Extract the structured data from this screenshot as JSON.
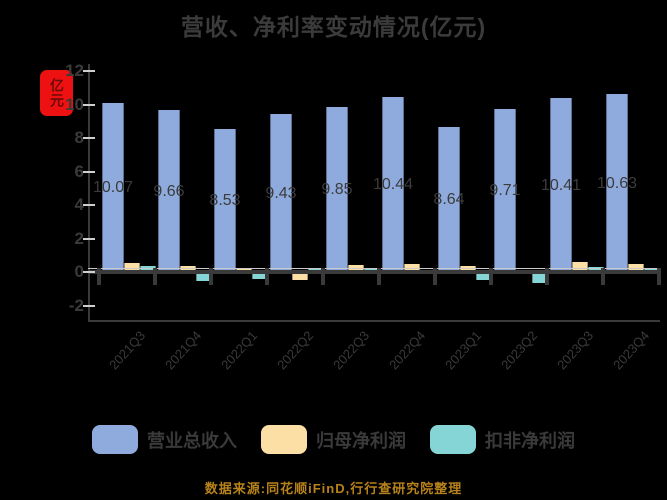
{
  "title": "营收、净利率变动情况(亿元)",
  "y_axis_unit_badge": "亿元",
  "source_caption": "数据来源:同花顺iFinD,行行查研究院整理",
  "colors": {
    "background": "#000000",
    "text": "#3b3b3b",
    "axis": "#3a3a3a",
    "tick": "#cfcfcf",
    "badge_red": "#ee1111",
    "caption_gold": "#b8821a",
    "revenue_blue": "#8faadc",
    "net_profit_orange": "#fcdfa4",
    "deducted_profit_teal": "#86d5d6"
  },
  "legend": [
    {
      "label": "营业总收入",
      "color": "#8faadc"
    },
    {
      "label": "归母净利润",
      "color": "#fcdfa4"
    },
    {
      "label": "扣非净利润",
      "color": "#86d5d6"
    }
  ],
  "chart_data": {
    "type": "bar",
    "title": "营收、净利率变动情况(亿元)",
    "categories": [
      "2021Q3",
      "2021Q4",
      "2022Q1",
      "2022Q2",
      "2022Q3",
      "2022Q4",
      "2023Q1",
      "2023Q2",
      "2023Q3",
      "2023Q4"
    ],
    "series": [
      {
        "name": "营业总收入",
        "color": "#8faadc",
        "values": [
          10.07,
          9.66,
          8.53,
          9.43,
          9.85,
          10.44,
          8.64,
          9.71,
          10.41,
          10.63
        ]
      },
      {
        "name": "归母净利润",
        "color": "#fcdfa4",
        "values": [
          0.55,
          0.35,
          0.25,
          -0.45,
          0.4,
          0.5,
          0.35,
          0.1,
          0.6,
          0.5
        ]
      },
      {
        "name": "扣非净利润",
        "color": "#86d5d6",
        "values": [
          0.35,
          -0.55,
          -0.4,
          0.15,
          0.2,
          0.1,
          -0.5,
          -0.65,
          0.3,
          0.15
        ]
      }
    ],
    "point_labels": [
      "10.07",
      "9.66",
      "8.53",
      "9.43",
      "9.85",
      "10.44",
      "8.64",
      "9.71",
      "10.41",
      "10.63"
    ],
    "y_ticks": [
      12,
      10,
      8,
      6,
      4,
      2,
      0,
      -2
    ],
    "ylim": [
      -2.9,
      12.3
    ],
    "xlabel": "",
    "ylabel": "亿元",
    "grid": false,
    "legend_position": "bottom"
  }
}
